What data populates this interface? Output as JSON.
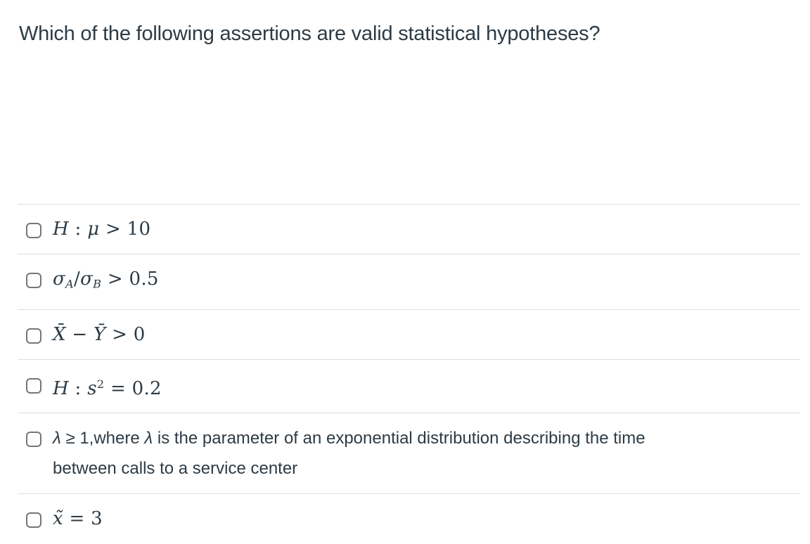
{
  "question": {
    "text": "Which of the following assertions are valid statistical hypotheses?"
  },
  "colors": {
    "background": "#ffffff",
    "text": "#2D3B45",
    "divider": "#dedede",
    "checkbox_border": "#767676"
  },
  "answers": [
    {
      "mode": "math",
      "checked": false,
      "plain": "H : μ > 10",
      "tokens": [
        {
          "k": "i",
          "t": "H"
        },
        {
          "k": "r",
          "t": " : "
        },
        {
          "k": "i",
          "t": "μ"
        },
        {
          "k": "r",
          "t": " > 10"
        }
      ]
    },
    {
      "mode": "math",
      "checked": false,
      "plain": "σA/σB > 0.5",
      "tokens": [
        {
          "k": "i",
          "t": "σ"
        },
        {
          "k": "sub",
          "t": "A"
        },
        {
          "k": "r",
          "t": "/"
        },
        {
          "k": "i",
          "t": "σ"
        },
        {
          "k": "sub",
          "t": "B"
        },
        {
          "k": "r",
          "t": " > 0.5"
        }
      ]
    },
    {
      "mode": "math",
      "checked": false,
      "plain": "X̄ − Ȳ > 0",
      "tokens": [
        {
          "k": "i",
          "t": "X̄"
        },
        {
          "k": "r",
          "t": " − "
        },
        {
          "k": "i",
          "t": "Ȳ"
        },
        {
          "k": "r",
          "t": " > 0"
        }
      ]
    },
    {
      "mode": "math",
      "checked": false,
      "plain": "H : s² = 0.2",
      "tokens": [
        {
          "k": "i",
          "t": "H"
        },
        {
          "k": "r",
          "t": " : "
        },
        {
          "k": "i",
          "t": "s"
        },
        {
          "k": "sup",
          "t": "2"
        },
        {
          "k": "r",
          "t": " = 0.2"
        }
      ]
    },
    {
      "mode": "text",
      "checked": false,
      "plain": "λ ≥ 1,where λ is the parameter of an exponential distribution describing the time between calls to a service center",
      "tokens": [
        {
          "k": "i",
          "t": "λ"
        },
        {
          "k": "r",
          "t": " ≥ 1,where "
        },
        {
          "k": "i",
          "t": "λ"
        },
        {
          "k": "r",
          "t": " is the parameter of an exponential distribution describing the time"
        },
        {
          "k": "br"
        },
        {
          "k": "r",
          "t": "between calls to a service center"
        }
      ]
    },
    {
      "mode": "math",
      "checked": false,
      "plain": "x̃ = 3",
      "tokens": [
        {
          "k": "i",
          "t": "x̃"
        },
        {
          "k": "r",
          "t": " = 3"
        }
      ]
    }
  ]
}
